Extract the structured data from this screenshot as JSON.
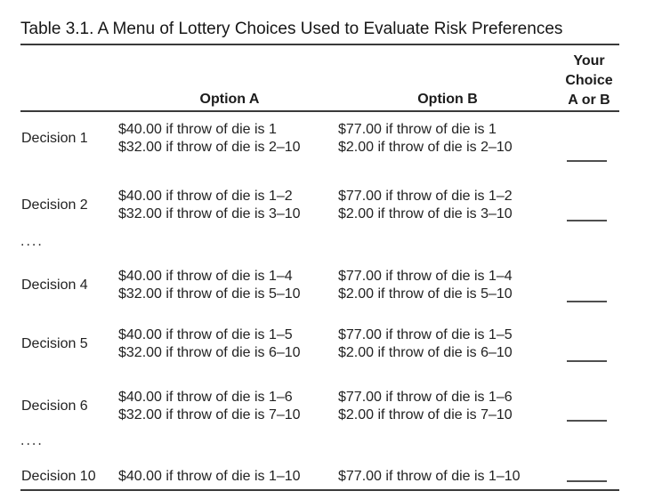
{
  "table": {
    "title": "Table 3.1. A Menu of Lottery Choices Used to Evaluate Risk Preferences",
    "columns": {
      "option_a": "Option A",
      "option_b": "Option B",
      "choice_line1": "Your",
      "choice_line2": "Choice",
      "choice_line3": "A or B"
    },
    "rows": [
      {
        "label": "Decision 1",
        "option_a_line1": "$40.00 if throw of die is 1",
        "option_a_line2": "$32.00 if throw of die is 2–10",
        "option_b_line1": "$77.00 if throw of die is 1",
        "option_b_line2": "$2.00 if throw of die is 2–10",
        "choice": ""
      },
      {
        "label": "Decision 2",
        "option_a_line1": "$40.00 if throw of die is 1–2",
        "option_a_line2": "$32.00 if throw of die is 3–10",
        "option_b_line1": "$77.00 if throw of die is 1–2",
        "option_b_line2": "$2.00 if throw of die is 3–10",
        "choice": ""
      },
      {
        "ellipsis": "...."
      },
      {
        "label": "Decision 4",
        "option_a_line1": "$40.00 if throw of die is 1–4",
        "option_a_line2": "$32.00 if throw of die is 5–10",
        "option_b_line1": "$77.00 if throw of die is 1–4",
        "option_b_line2": "$2.00 if throw of die is 5–10",
        "choice": ""
      },
      {
        "label": "Decision 5",
        "option_a_line1": "$40.00 if throw of die is 1–5",
        "option_a_line2": "$32.00 if throw of die is 6–10",
        "option_b_line1": "$77.00 if throw of die is 1–5",
        "option_b_line2": "$2.00 if throw of die is 6–10",
        "choice": ""
      },
      {
        "label": "Decision 6",
        "option_a_line1": "$40.00 if throw of die is 1–6",
        "option_a_line2": "$32.00 if throw of die is 7–10",
        "option_b_line1": "$77.00 if throw of die is 1–6",
        "option_b_line2": "$2.00 if throw of die is 7–10",
        "choice": ""
      },
      {
        "ellipsis": "...."
      },
      {
        "label": "Decision 10",
        "option_a_line1": "$40.00 if throw of die is 1–10",
        "option_a_line2": "",
        "option_b_line1": "$77.00 if throw of die is 1–10",
        "option_b_line2": "",
        "choice": ""
      }
    ],
    "colors": {
      "text": "#1f1f1f",
      "rule": "#3a3a3a",
      "blank_line": "#4f4f4f"
    }
  }
}
